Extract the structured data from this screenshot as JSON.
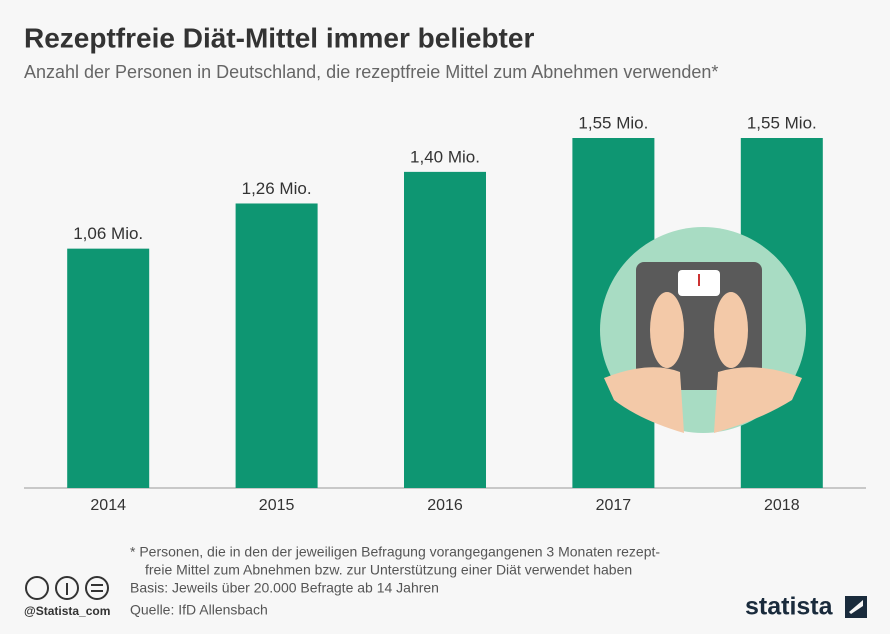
{
  "chart_data": {
    "type": "bar",
    "title": "Rezeptfreie Diät-Mittel immer beliebter",
    "subtitle": "Anzahl der Personen in Deutschland, die rezeptfreie Mittel zum Abnehmen verwenden*",
    "categories": [
      "2014",
      "2015",
      "2016",
      "2017",
      "2018"
    ],
    "values": [
      1.06,
      1.26,
      1.4,
      1.55,
      1.55
    ],
    "value_labels": [
      "1,06 Mio.",
      "1,26 Mio.",
      "1,40 Mio.",
      "1,55 Mio.",
      "1,55 Mio."
    ],
    "color": "#0e9672",
    "notes": [
      "* Personen, die in den der jeweiligen Befragung vorangegangenen 3 Monaten rezept-",
      "freie Mittel zum Abnehmen bzw. zur Unterstützung einer Diät verwendet haben",
      "Basis: Jeweils über 20.000 Befragte ab 14 Jahren",
      "Quelle: IfD Allensbach"
    ],
    "credit": "@Statista_com",
    "brand": "statista"
  }
}
